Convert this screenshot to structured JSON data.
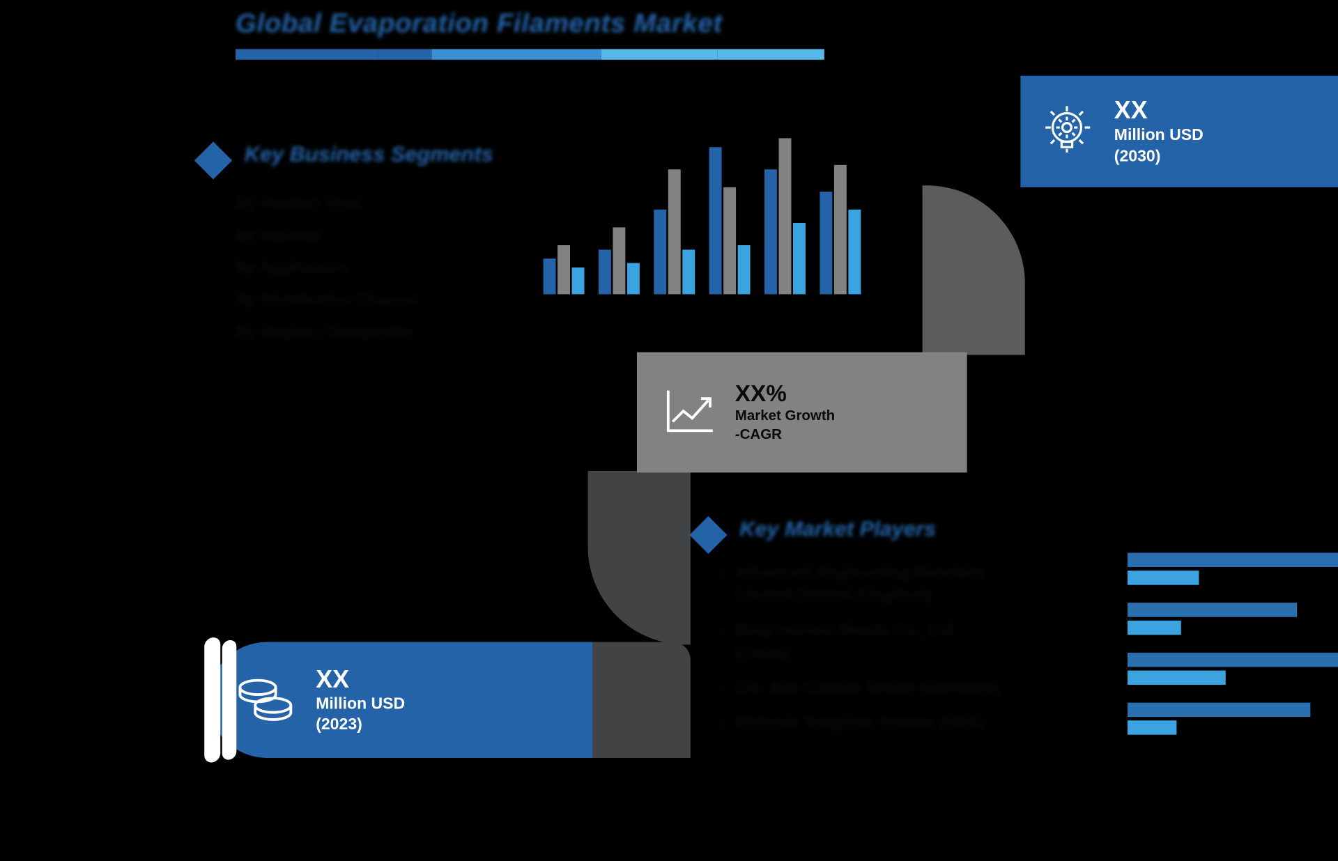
{
  "title": "Global Evaporation Filaments Market",
  "title_bar_colors": [
    "#2563a8",
    "#2563a8",
    "#3b8fd4",
    "#3b8fd4",
    "#57b8ea",
    "#57b8ea"
  ],
  "title_bar_widths": [
    160,
    60,
    130,
    60,
    130,
    120
  ],
  "segments": {
    "heading": "Key Business Segments",
    "items": [
      "By Product Type",
      "By Material",
      "By Application",
      "By Distribution Channel",
      "By Region / Geography"
    ]
  },
  "players": {
    "heading": "Key Market Players",
    "items": [
      "Advanced Engineering Materials Limited (United Kingdom)",
      "Baoji Hanwei Metals Co., Ltd (China)",
      "Chr. Bilk-Candor GmbH (Germany)",
      "Midwest Tungsten Service (USA)"
    ]
  },
  "ribbon": {
    "start": {
      "value": "XX",
      "unit": "Million USD",
      "year": "(2023)",
      "bg": "#2563a8"
    },
    "mid": {
      "value": "XX%",
      "label1": "Market Growth",
      "label2": "-CAGR",
      "bg": "#808284"
    },
    "end": {
      "value": "XX",
      "unit": "Million USD",
      "year": "(2030)",
      "bg": "#2563a8"
    }
  },
  "bar_chart": {
    "colors": [
      "#2563a8",
      "#808284",
      "#3ba3e0"
    ],
    "groups": [
      [
        40,
        55,
        30
      ],
      [
        50,
        75,
        35
      ],
      [
        95,
        140,
        50
      ],
      [
        165,
        120,
        55
      ],
      [
        140,
        175,
        80
      ],
      [
        115,
        145,
        95
      ]
    ]
  },
  "hbar_chart": {
    "colors": [
      "#2a6faf",
      "#3ba3e0"
    ],
    "rows": [
      [
        260,
        80
      ],
      [
        190,
        60
      ],
      [
        260,
        110
      ],
      [
        205,
        55
      ]
    ]
  },
  "icons": {
    "coins": "coins-icon",
    "growth": "growth-chart-icon",
    "bulb": "lightbulb-gear-icon"
  },
  "style": {
    "bg": "#000000",
    "accent": "#2563a8",
    "grey_light": "#808284",
    "grey_dark": "#424345",
    "text_dark": "#0a0a0a"
  }
}
